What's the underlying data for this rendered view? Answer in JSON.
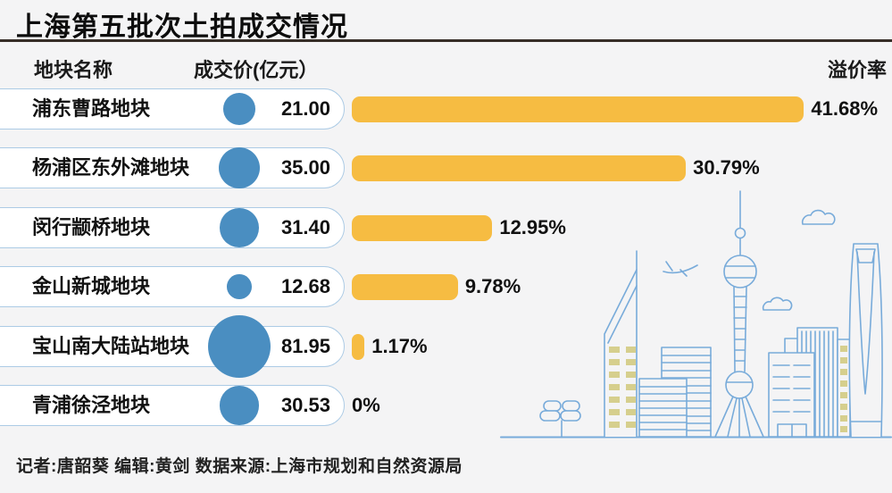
{
  "title": "上海第五批次土拍成交情况",
  "columns": {
    "name": "地块名称",
    "price": "成交价(亿元）",
    "premium": "溢价率"
  },
  "rows": [
    {
      "name": "浦东曹路地块",
      "price": "21.00",
      "price_value": 21.0,
      "premium": "41.68%",
      "premium_value": 41.68
    },
    {
      "name": "杨浦区东外滩地块",
      "price": "35.00",
      "price_value": 35.0,
      "premium": "30.79%",
      "premium_value": 30.79
    },
    {
      "name": "闵行颛桥地块",
      "price": "31.40",
      "price_value": 31.4,
      "premium": "12.95%",
      "premium_value": 12.95
    },
    {
      "name": "金山新城地块",
      "price": "12.68",
      "price_value": 12.68,
      "premium": "9.78%",
      "premium_value": 9.78
    },
    {
      "name": "宝山南大陆站地块",
      "price": "81.95",
      "price_value": 81.95,
      "premium": "1.17%",
      "premium_value": 1.17
    },
    {
      "name": "青浦徐泾地块",
      "price": "30.53",
      "price_value": 30.53,
      "premium": "0%",
      "premium_value": 0
    }
  ],
  "footer": "记者:唐韶葵  编辑:黄剑 数据来源:上海市规划和自然资源局",
  "colors": {
    "background": "#F4F4F5",
    "underline": "#362E27",
    "pill_border": "#ACCBE5",
    "circle": "#4A8EC1",
    "bar": "#F6BC42",
    "skyline": "#78ABDA",
    "window": "#D6CF8D"
  },
  "chart_data": {
    "type": "bar",
    "orientation": "horizontal",
    "title": "上海第五批次土拍成交情况",
    "categories": [
      "浦东曹路地块",
      "杨浦区东外滩地块",
      "闵行颛桥地块",
      "金山新城地块",
      "宝山南大陆站地块",
      "青浦徐泾地块"
    ],
    "series": [
      {
        "name": "成交价(亿元）",
        "encoding": "bubble-size",
        "color": "#4A8EC1",
        "values": [
          21.0,
          35.0,
          31.4,
          12.68,
          81.95,
          30.53
        ]
      },
      {
        "name": "溢价率(%)",
        "encoding": "bar-length",
        "color": "#F6BC42",
        "values": [
          41.68,
          30.79,
          12.95,
          9.78,
          1.17,
          0
        ]
      }
    ],
    "value_labels_shown": true,
    "legend": "none",
    "grid": false,
    "source": "上海市规划和自然资源局"
  }
}
